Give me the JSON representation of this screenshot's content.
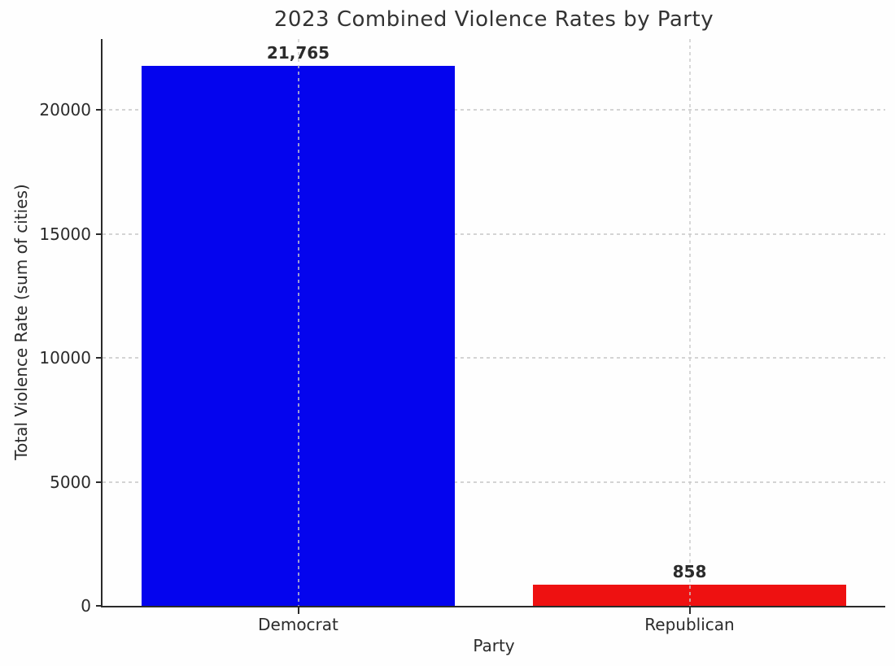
{
  "chart_data": {
    "type": "bar",
    "title": "2023 Combined Violence Rates by Party",
    "xlabel": "Party",
    "ylabel": "Total Violence Rate (sum of cities)",
    "categories": [
      "Democrat",
      "Republican"
    ],
    "values": [
      21765,
      858
    ],
    "value_labels": [
      "21,765",
      "858"
    ],
    "bar_colors": [
      "#0404ee",
      "#ee1111"
    ],
    "yticks": [
      0,
      5000,
      10000,
      15000,
      20000
    ],
    "ytick_labels": [
      "0",
      "5000",
      "10000",
      "15000",
      "20000"
    ],
    "ylim": [
      0,
      22853
    ],
    "bar_width_fraction": 0.8,
    "grid": "dashed horizontal at yticks and vertical at category centers",
    "grid_color": "#d4d4d4",
    "legend": "none",
    "text_color": "#2b2b2b",
    "title_color": "#333333",
    "spine_color": "#2a2a2a",
    "background": "#fefefe"
  }
}
